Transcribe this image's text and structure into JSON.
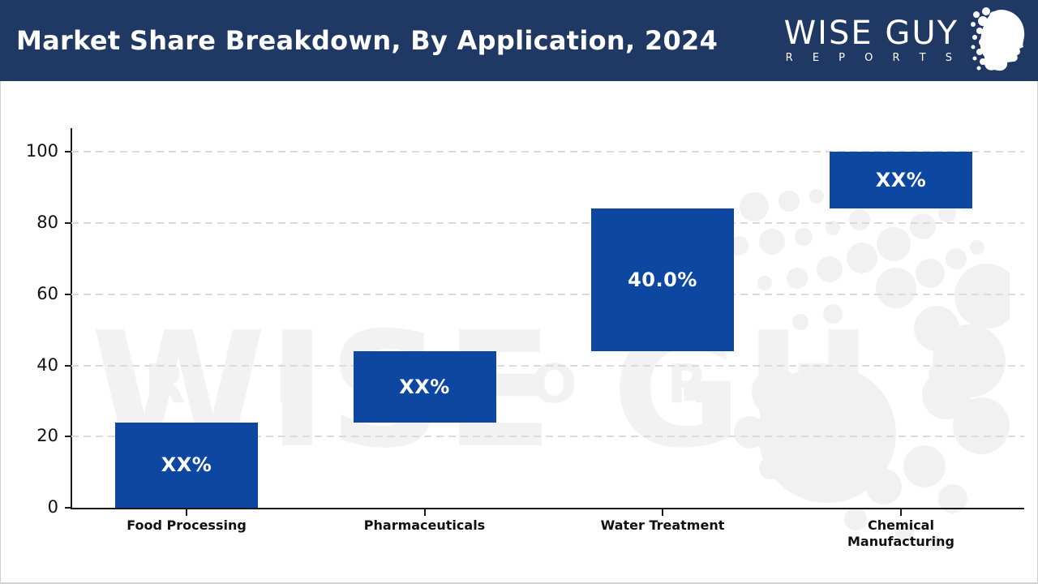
{
  "header": {
    "title": "Market Share Breakdown, By Application, 2024",
    "logo": {
      "name": "WISE GUY",
      "sub": "R E P O R T S"
    }
  },
  "watermark": {
    "big": "WISE GU",
    "sub": "R E P O R T S"
  },
  "colors": {
    "header_bg": "#1f3864",
    "bar": "#0d47a1",
    "grid": "#dbdbdb",
    "axis": "#1a1a1a",
    "bar_label": "#ffffff",
    "watermark": "#f2f2f2"
  },
  "chart_data": {
    "type": "bar",
    "subtype": "floating-waterfall",
    "title": "Market Share Breakdown, By Application, 2024",
    "xlabel": "",
    "ylabel": "",
    "categories": [
      "Food Processing",
      "Pharmaceuticals",
      "Water Treatment",
      "Chemical Manufacturing"
    ],
    "segments": [
      {
        "category": "Food Processing",
        "start": 0,
        "end": 24,
        "height": 24,
        "label": "XX%"
      },
      {
        "category": "Pharmaceuticals",
        "start": 24,
        "end": 44,
        "height": 20,
        "label": "XX%"
      },
      {
        "category": "Water Treatment",
        "start": 44,
        "end": 84,
        "height": 40,
        "label": "40.0%"
      },
      {
        "category": "Chemical Manufacturing",
        "start": 84,
        "end": 100,
        "height": 16,
        "label": "XX%"
      }
    ],
    "yticks": [
      0,
      20,
      40,
      60,
      80,
      100
    ],
    "ylim": [
      0,
      106
    ],
    "grid": "horizontal-dashed",
    "legend": "none",
    "bar_color": "#0d47a1"
  }
}
